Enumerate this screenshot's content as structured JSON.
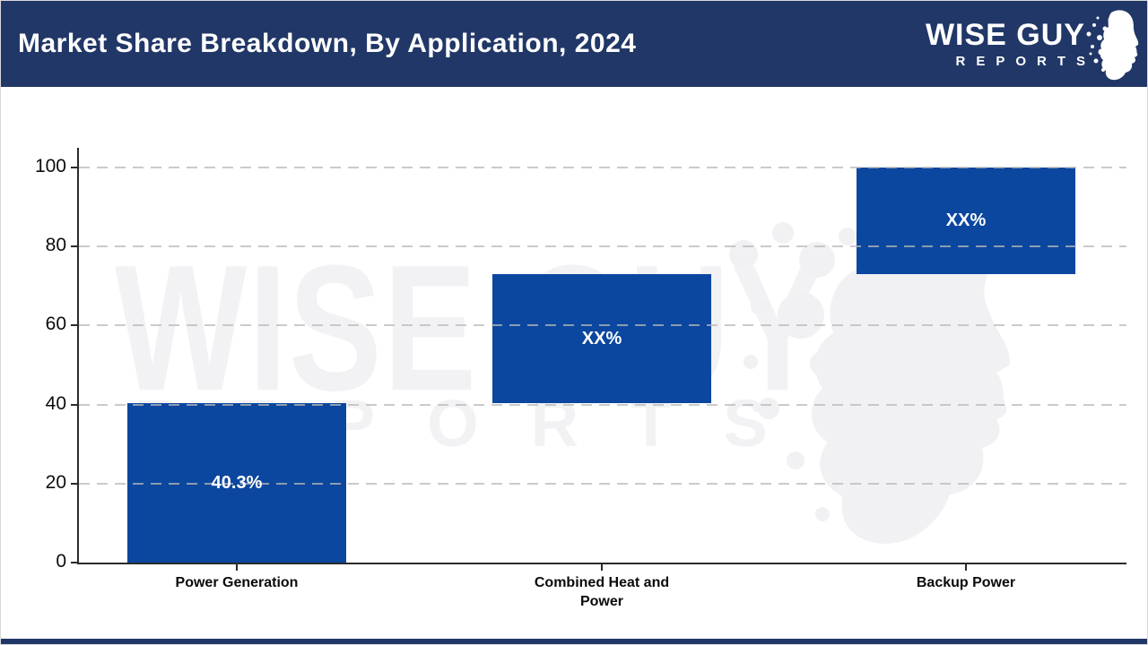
{
  "header": {
    "title": "Market Share Breakdown, By Application, 2024",
    "logo": {
      "name": "WISE GUY",
      "sub": "REPORTS"
    }
  },
  "watermark": {
    "line1": "WISE GUY",
    "line2": "REPORTS"
  },
  "colors": {
    "header_bg": "#213767",
    "footer_bg": "#213767",
    "bar": "#0b479f",
    "bar_label": "#ffffff",
    "grid": "#d8d8d8",
    "axis": "#2b2b2b",
    "watermark": "#f2f2f4"
  },
  "chart_data": {
    "type": "bar",
    "subtype": "stacked-step-waterfall",
    "title": "Market Share Breakdown, By Application, 2024",
    "unit": "%",
    "categories": [
      "Power Generation",
      "Combined Heat and Power",
      "Backup Power"
    ],
    "segments": [
      {
        "category": "Power Generation",
        "start": 0,
        "end": 40.3,
        "label": "40.3%"
      },
      {
        "category": "Combined Heat and Power",
        "start": 40.3,
        "end": 73,
        "label": "XX%"
      },
      {
        "category": "Backup Power",
        "start": 73,
        "end": 100,
        "label": "XX%"
      }
    ],
    "yticks": [
      0,
      20,
      40,
      60,
      80,
      100
    ],
    "ylim": [
      0,
      105
    ],
    "xlabel": "",
    "ylabel": "",
    "grid": "horizontal dashed, drawn over bars",
    "legend": "none"
  }
}
